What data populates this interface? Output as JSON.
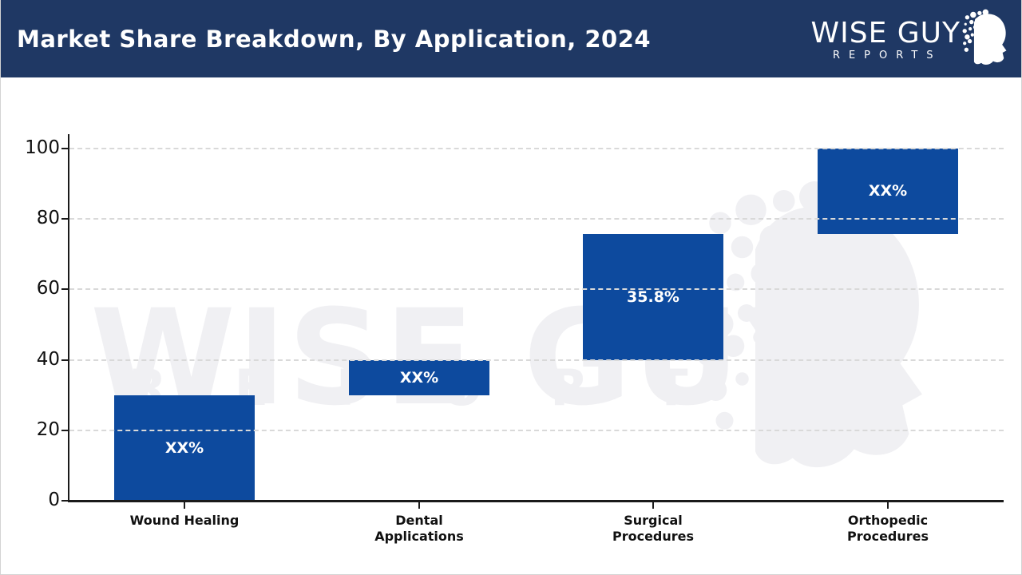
{
  "header": {
    "title": "Market Share Breakdown, By Application, 2024",
    "logo_line1": "WISE GUY",
    "logo_line2": "REPORTS"
  },
  "watermark": {
    "line1": "WISE GUY",
    "line2": "REPORTS"
  },
  "colors": {
    "header_bg": "#1f3864",
    "title_text": "#ffffff",
    "bar_fill": "#0d4a9e",
    "bar_label": "#ffffff",
    "grid_line": "#d9d9d9",
    "axis_line": "#1a1a1a",
    "tick_label": "#111111",
    "category_label": "#111111",
    "watermark": "#f0f0f3",
    "page_border": "#d3d3d3"
  },
  "chart_data": {
    "type": "bar",
    "subtype": "floating-waterfall",
    "title": "Market Share Breakdown, By Application, 2024",
    "categories": [
      "Wound Healing",
      "Dental Applications",
      "Surgical Procedures",
      "Orthopedic Procedures"
    ],
    "bars": [
      {
        "category": "Wound Healing",
        "start": 0,
        "end": 30,
        "label": "XX%"
      },
      {
        "category": "Dental Applications",
        "start": 30,
        "end": 40,
        "label": "XX%"
      },
      {
        "category": "Surgical Procedures",
        "start": 40,
        "end": 75.8,
        "label": "35.8%"
      },
      {
        "category": "Orthopedic Procedures",
        "start": 75.8,
        "end": 100,
        "label": "XX%"
      }
    ],
    "xlabel": "",
    "ylabel": "",
    "ylim": [
      0,
      105
    ],
    "yticks": [
      0,
      20,
      40,
      60,
      80,
      100
    ],
    "grid": "horizontal-dashed",
    "legend": null
  }
}
